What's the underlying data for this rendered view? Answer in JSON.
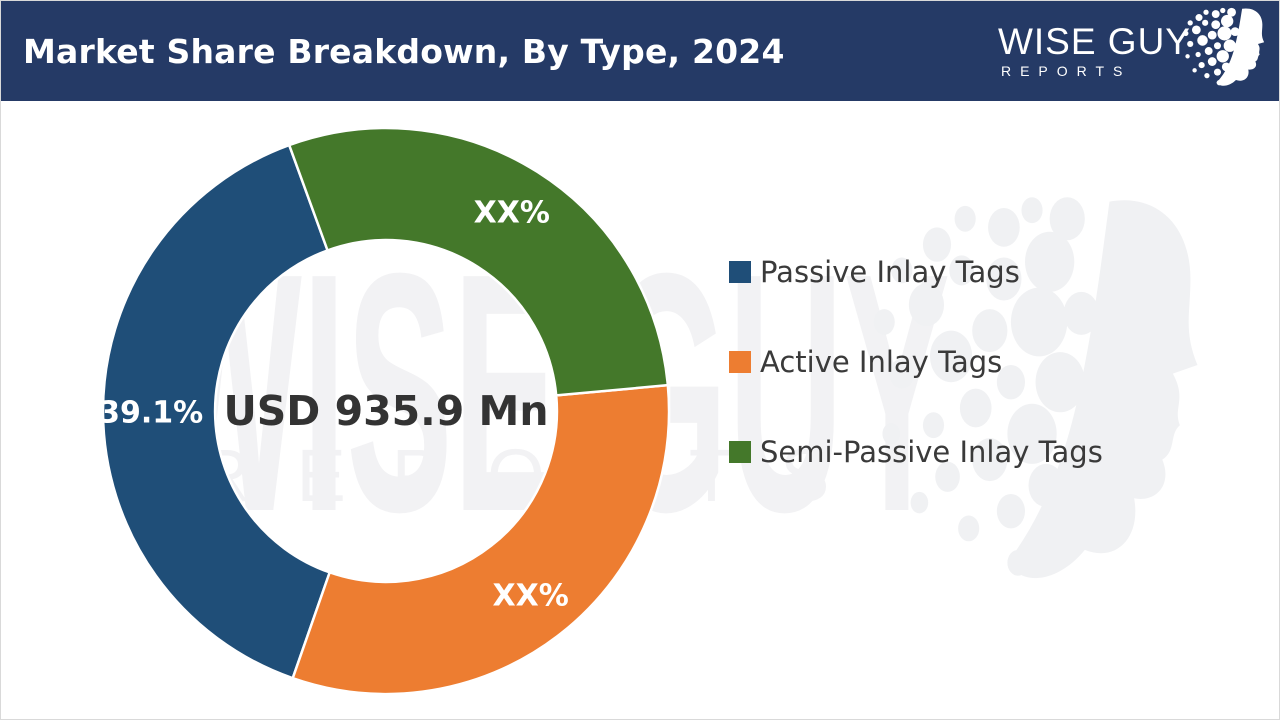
{
  "header": {
    "title": "Market Share Breakdown, By Type, 2024",
    "brand": {
      "name": "WISE GUY",
      "tagline": "REPORTS"
    }
  },
  "watermark": {
    "name": "WISE GUY",
    "tagline": "REPORTS"
  },
  "chart_data": {
    "type": "pie",
    "subtype": "donut",
    "title": "Market Share Breakdown, By Type, 2024",
    "center_label": "USD 935.9 Mn",
    "start_angle_deg": 110,
    "direction": "counterclockwise",
    "inner_radius_ratio": 0.604,
    "label_radius_ratio": 0.83,
    "legend_position": "right",
    "segments": [
      {
        "name": "Passive Inlay Tags",
        "label": "39.1%",
        "value_pct": 39.1,
        "color": "#1f4e78"
      },
      {
        "name": "Active Inlay Tags",
        "label": "XX%",
        "value_pct": 31.8,
        "color": "#ed7d31"
      },
      {
        "name": "Semi-Passive Inlay Tags",
        "label": "XX%",
        "value_pct": 29.1,
        "color": "#44782a"
      }
    ]
  },
  "colors": {
    "header_bg": "#253a66",
    "text_dark": "#333333",
    "legend_text": "#3a3a3a",
    "watermark": "#f2f2f4",
    "watermark_face": "#f0f1f3",
    "border": "#d9d9d9",
    "separator": "#ffffff"
  }
}
